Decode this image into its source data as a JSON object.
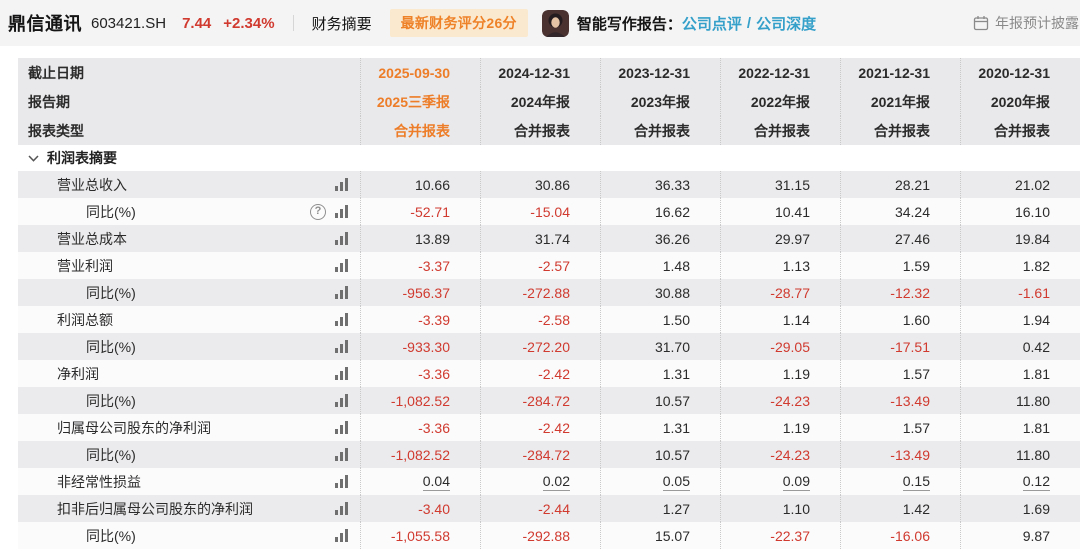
{
  "topbar": {
    "stock_name": "鼎信通讯",
    "stock_code": "603421.SH",
    "price": "7.44",
    "change": "+2.34%",
    "tab_financial_summary": "财务摘要",
    "score_badge": "最新财务评分26分",
    "ai_report_label": "智能写作报告：",
    "link_company_comment": "公司点评",
    "link_separator": "/",
    "link_company_deep": "公司深度",
    "annual_report_notice": "年报预计披露",
    "avatar_icon": "female-analyst-avatar",
    "calendar_icon": "calendar-icon"
  },
  "colors": {
    "accent_orange": "#ed7d28",
    "negative_red": "#d03a2f",
    "link_blue": "#35a0c9",
    "badge_bg": "#fbe9cf",
    "row_stripe": "#ebebed",
    "header_bg": "#e9e9eb"
  },
  "table": {
    "section_title": "利润表摘要",
    "header_rows": [
      {
        "label": "截止日期",
        "values": [
          "2025-09-30",
          "2024-12-31",
          "2023-12-31",
          "2022-12-31",
          "2021-12-31",
          "2020-12-31"
        ]
      },
      {
        "label": "报告期",
        "values": [
          "2025三季报",
          "2024年报",
          "2023年报",
          "2022年报",
          "2021年报",
          "2020年报"
        ]
      },
      {
        "label": "报表类型",
        "values": [
          "合并报表",
          "合并报表",
          "合并报表",
          "合并报表",
          "合并报表",
          "合并报表"
        ]
      }
    ],
    "rows": [
      {
        "label": "营业总收入",
        "indent": 1,
        "icons": [
          "bars"
        ],
        "underline": false,
        "values": [
          "10.66",
          "30.86",
          "36.33",
          "31.15",
          "28.21",
          "21.02"
        ]
      },
      {
        "label": "同比(%)",
        "indent": 2,
        "icons": [
          "help",
          "bars"
        ],
        "underline": false,
        "values": [
          "-52.71",
          "-15.04",
          "16.62",
          "10.41",
          "34.24",
          "16.10"
        ]
      },
      {
        "label": "营业总成本",
        "indent": 1,
        "icons": [
          "bars"
        ],
        "underline": false,
        "values": [
          "13.89",
          "31.74",
          "36.26",
          "29.97",
          "27.46",
          "19.84"
        ]
      },
      {
        "label": "营业利润",
        "indent": 1,
        "icons": [
          "bars"
        ],
        "underline": false,
        "values": [
          "-3.37",
          "-2.57",
          "1.48",
          "1.13",
          "1.59",
          "1.82"
        ]
      },
      {
        "label": "同比(%)",
        "indent": 2,
        "icons": [
          "bars"
        ],
        "underline": false,
        "values": [
          "-956.37",
          "-272.88",
          "30.88",
          "-28.77",
          "-12.32",
          "-1.61"
        ]
      },
      {
        "label": "利润总额",
        "indent": 1,
        "icons": [
          "bars"
        ],
        "underline": false,
        "values": [
          "-3.39",
          "-2.58",
          "1.50",
          "1.14",
          "1.60",
          "1.94"
        ]
      },
      {
        "label": "同比(%)",
        "indent": 2,
        "icons": [
          "bars"
        ],
        "underline": false,
        "values": [
          "-933.30",
          "-272.20",
          "31.70",
          "-29.05",
          "-17.51",
          "0.42"
        ]
      },
      {
        "label": "净利润",
        "indent": 1,
        "icons": [
          "bars"
        ],
        "underline": false,
        "values": [
          "-3.36",
          "-2.42",
          "1.31",
          "1.19",
          "1.57",
          "1.81"
        ]
      },
      {
        "label": "同比(%)",
        "indent": 2,
        "icons": [
          "bars"
        ],
        "underline": false,
        "values": [
          "-1,082.52",
          "-284.72",
          "10.57",
          "-24.23",
          "-13.49",
          "11.80"
        ]
      },
      {
        "label": "归属母公司股东的净利润",
        "indent": 1,
        "icons": [
          "bars"
        ],
        "underline": false,
        "values": [
          "-3.36",
          "-2.42",
          "1.31",
          "1.19",
          "1.57",
          "1.81"
        ]
      },
      {
        "label": "同比(%)",
        "indent": 2,
        "icons": [
          "bars"
        ],
        "underline": false,
        "values": [
          "-1,082.52",
          "-284.72",
          "10.57",
          "-24.23",
          "-13.49",
          "11.80"
        ]
      },
      {
        "label": "非经常性损益",
        "indent": 1,
        "icons": [
          "bars"
        ],
        "underline": true,
        "values": [
          "0.04",
          "0.02",
          "0.05",
          "0.09",
          "0.15",
          "0.12"
        ]
      },
      {
        "label": "扣非后归属母公司股东的净利润",
        "indent": 1,
        "icons": [
          "bars"
        ],
        "underline": false,
        "values": [
          "-3.40",
          "-2.44",
          "1.27",
          "1.10",
          "1.42",
          "1.69"
        ]
      },
      {
        "label": "同比(%)",
        "indent": 2,
        "icons": [
          "bars"
        ],
        "underline": false,
        "values": [
          "-1,055.58",
          "-292.88",
          "15.07",
          "-22.37",
          "-16.06",
          "9.87"
        ]
      }
    ]
  }
}
